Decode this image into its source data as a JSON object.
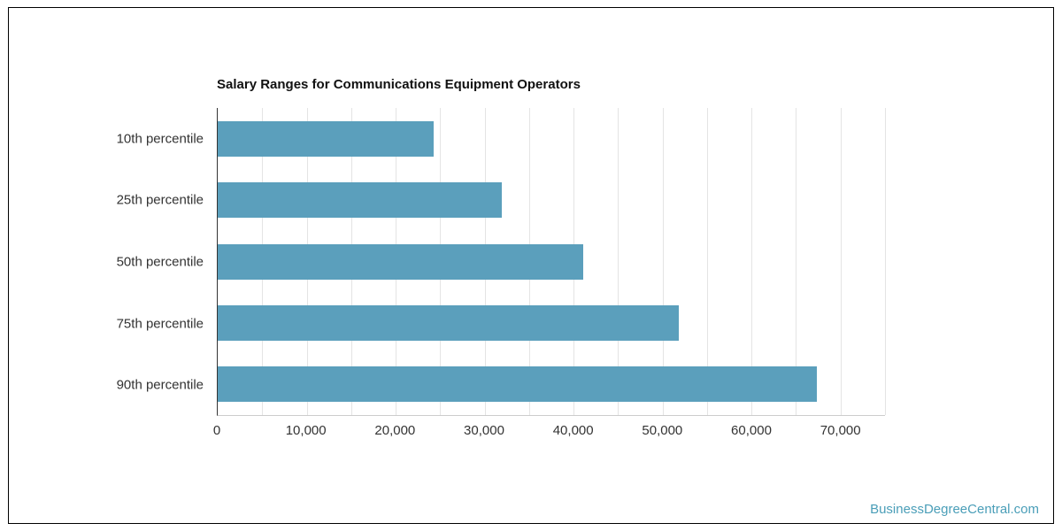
{
  "page": {
    "footer_link": "BusinessDegreeCentral.com"
  },
  "chart_data": {
    "type": "bar",
    "orientation": "horizontal",
    "title": "Salary Ranges for Communications Equipment Operators",
    "categories": [
      "10th percentile",
      "25th percentile",
      "50th percentile",
      "75th percentile",
      "90th percentile"
    ],
    "values": [
      24300,
      31900,
      41100,
      51800,
      67300
    ],
    "xlabel": "",
    "ylabel": "",
    "xlim": [
      0,
      75000
    ],
    "x_ticks": [
      0,
      10000,
      20000,
      30000,
      40000,
      50000,
      60000,
      70000
    ],
    "x_tick_labels": [
      "0",
      "10,000",
      "20,000",
      "30,000",
      "40,000",
      "50,000",
      "60,000",
      "70,000"
    ],
    "gridline_interval": 5000,
    "grid": true,
    "legend": false,
    "colors": {
      "bar": "#5b9fbc",
      "grid": "#e4e4e4",
      "axis_text": "#333333",
      "title_text": "#111111",
      "link": "#4a9eb8"
    }
  }
}
